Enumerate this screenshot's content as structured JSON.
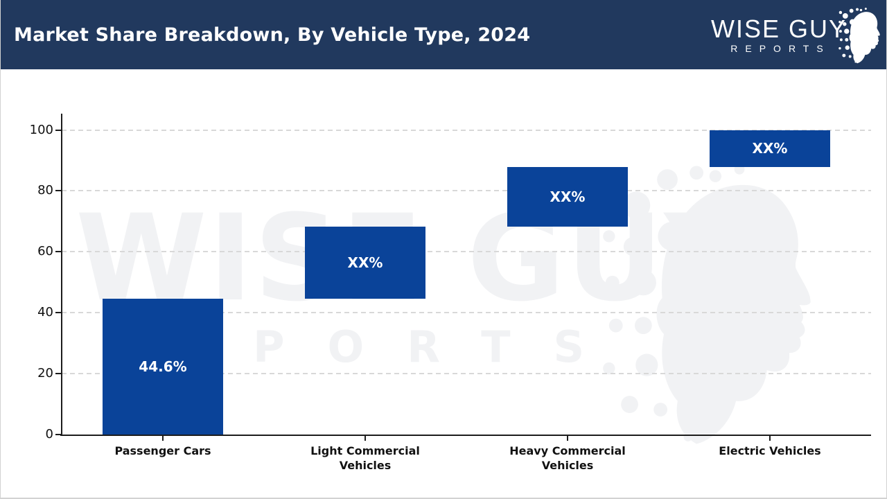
{
  "header": {
    "title": "Market Share Breakdown, By Vehicle Type, 2024",
    "logo": {
      "line1": "WISE GUY",
      "line2": "REPORTS"
    }
  },
  "watermark": {
    "line1": "WISE GUY",
    "line2": "REPORTS"
  },
  "chart_data": {
    "type": "bar",
    "subtype": "waterfall",
    "title": "Market Share Breakdown, By Vehicle Type, 2024",
    "categories": [
      "Passenger Cars",
      "Light Commercial Vehicles",
      "Heavy Commercial Vehicles",
      "Electric Vehicles"
    ],
    "categories_lines": [
      [
        "Passenger Cars"
      ],
      [
        "Light Commercial",
        "Vehicles"
      ],
      [
        "Heavy Commercial",
        "Vehicles"
      ],
      [
        "Electric Vehicles"
      ]
    ],
    "segments": [
      {
        "category": "Passenger Cars",
        "start": 0,
        "end": 44.6,
        "label": "44.6%"
      },
      {
        "category": "Light Commercial Vehicles",
        "start": 44.6,
        "end": 68.3,
        "label": "XX%"
      },
      {
        "category": "Heavy Commercial Vehicles",
        "start": 68.3,
        "end": 87.9,
        "label": "XX%"
      },
      {
        "category": "Electric Vehicles",
        "start": 87.9,
        "end": 100,
        "label": "XX%"
      }
    ],
    "ylabel": "",
    "xlabel": "",
    "yticks": [
      0,
      20,
      40,
      60,
      80,
      100
    ],
    "ylim": [
      0,
      105
    ],
    "grid": "horizontal-dashed",
    "legend": "none",
    "colors": {
      "bar": "#0a4399",
      "header_navy": "#21395e",
      "gridline": "#d8d8d8",
      "axis": "#1c1c1c",
      "bar_label_text": "#ffffff",
      "watermark": "#f1f2f4"
    }
  }
}
